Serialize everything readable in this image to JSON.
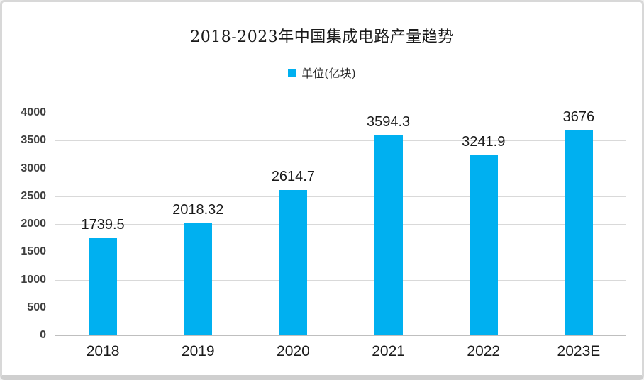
{
  "title": "2018-2023年中国集成电路产量趋势",
  "legend": {
    "label": "单位(亿块)"
  },
  "colors": {
    "bar": "#00b0f0",
    "grid": "#d9d9d9",
    "axis": "#bfbfbf",
    "title_text": "#1a1a1a",
    "tick_text": "#3f3f3f",
    "label_text": "#1a1a1a"
  },
  "chart_data": {
    "type": "bar",
    "title": "2018-2023年中国集成电路产量趋势",
    "legend_entries": [
      "单位(亿块)"
    ],
    "legend_position": "top",
    "categories": [
      "2018",
      "2019",
      "2020",
      "2021",
      "2022",
      "2023E"
    ],
    "values": [
      1739.5,
      2018.32,
      2614.7,
      3594.3,
      3241.9,
      3676
    ],
    "value_labels": [
      "1739.5",
      "2018.32",
      "2614.7",
      "3594.3",
      "3241.9",
      "3676"
    ],
    "xlabel": "",
    "ylabel": "",
    "ylim": [
      0,
      4000
    ],
    "ytick_step": 500,
    "yticks": [
      "0",
      "500",
      "1000",
      "1500",
      "2000",
      "2500",
      "3000",
      "3500",
      "4000"
    ],
    "grid": "horizontal"
  }
}
